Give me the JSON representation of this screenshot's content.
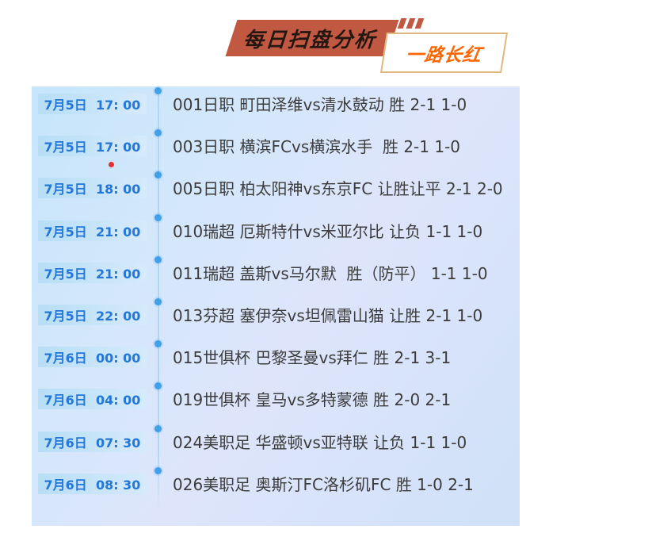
{
  "header": {
    "banner_label": "每日扫盘分析",
    "badge_label": "一路长红",
    "stripe_count": 3
  },
  "timeline": {
    "rows": [
      {
        "time": "7月5日  17: 00",
        "text": "001日职 町田泽维vs清水鼓动 胜 2-1 1-0"
      },
      {
        "time": "7月5日  17: 00",
        "text": "003日职 横滨FCvs横滨水手  胜 2-1 1-0"
      },
      {
        "time": "7月5日  18: 00",
        "text": "005日职 柏太阳神vs东京FC 让胜让平 2-1 2-0"
      },
      {
        "time": "7月5日  21: 00",
        "text": "010瑞超 厄斯特什vs米亚尔比 让负 1-1 1-0"
      },
      {
        "time": "7月5日  21: 00",
        "text": "011瑞超 盖斯vs马尔默  胜（防平） 1-1 1-0"
      },
      {
        "time": "7月5日  22: 00",
        "text": "013芬超 塞伊奈vs坦佩雷山猫 让胜 2-1 1-0"
      },
      {
        "time": "7月6日  00: 00",
        "text": "015世俱杯 巴黎圣曼vs拜仁 胜 2-1 3-1"
      },
      {
        "time": "7月6日  04: 00",
        "text": "019世俱杯 皇马vs多特蒙德 胜 2-0 2-1"
      },
      {
        "time": "7月6日  07: 30",
        "text": "024美职足 华盛顿vs亚特联 让负 1-1 1-0"
      },
      {
        "time": "7月6日  08: 30",
        "text": "026美职足 奥斯汀FC洛杉矶FC 胜 1-0 2-1"
      }
    ]
  },
  "colors": {
    "banner-red": "#c15841",
    "banner-text": "#241712",
    "badge-border": "#deb87c",
    "badge-orange": "#ff6602",
    "time-blue": "#2277d9",
    "time-badge-bg-start": "#b7def6",
    "time-badge-bg-end": "#d6eafb",
    "panel-bg-start": "#c6e6fb",
    "panel-bg-mid": "#dee5fb",
    "panel-bg-end": "#cfe1f8",
    "dot-blue": "#41a0ea",
    "line-blue": "#aed7f2",
    "red-dot": "#e63030",
    "match-text": "#3c3c3c"
  }
}
